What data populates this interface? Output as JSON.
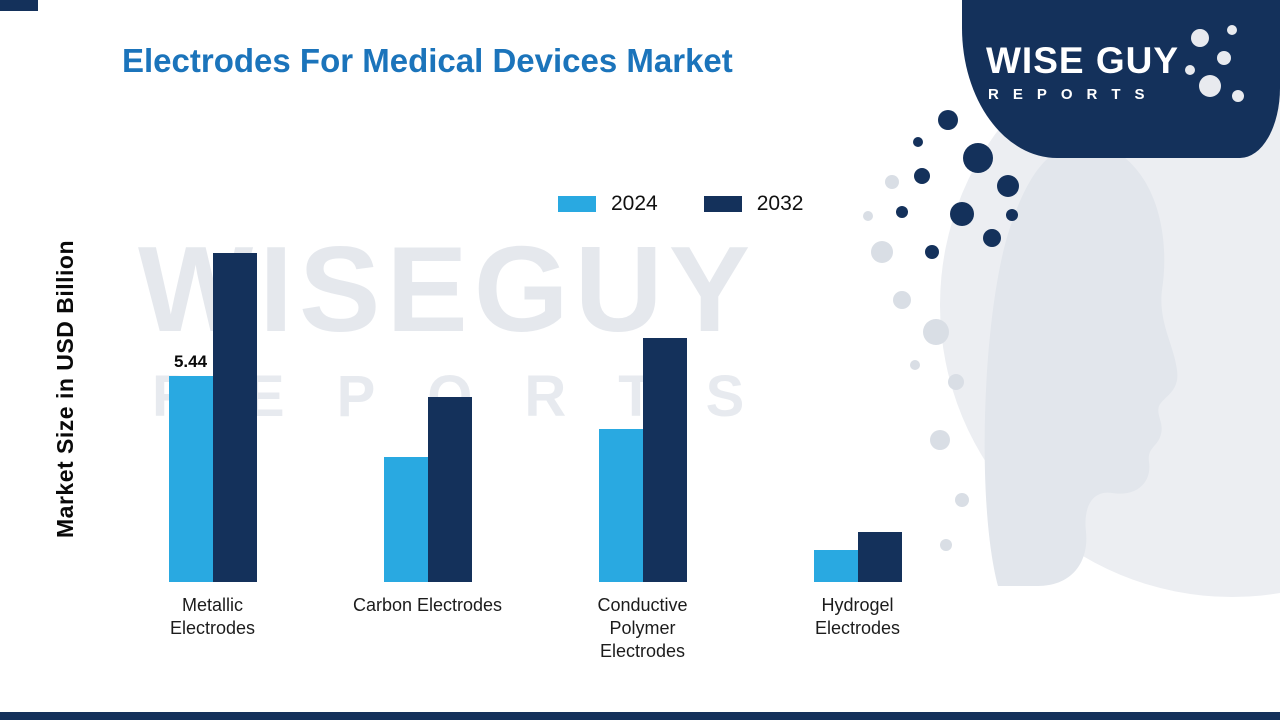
{
  "header": {
    "title": "Electrodes For Medical Devices Market"
  },
  "brand": {
    "name": "WISE GUY",
    "subtitle": "REPORTS"
  },
  "watermark": {
    "line1": "WISEGUY",
    "line2": "REPORTS"
  },
  "colors": {
    "series_2024": "#29A9E1",
    "series_2032": "#14315B",
    "title_blue": "#1B74BB",
    "accent_navy": "#14315B",
    "watermark_gray": "#D5DAE2"
  },
  "chart_data": {
    "type": "bar",
    "title": "Electrodes For Medical Devices Market",
    "ylabel": "Market Size in USD Billion",
    "xlabel": "",
    "ylim": [
      0,
      9
    ],
    "grid": false,
    "legend_position": "top",
    "categories": [
      "Metallic Electrodes",
      "Carbon Electrodes",
      "Conductive Polymer Electrodes",
      "Hydrogel Electrodes"
    ],
    "series": [
      {
        "name": "2024",
        "color": "#29A9E1",
        "values": [
          5.44,
          3.3,
          4.05,
          0.85
        ]
      },
      {
        "name": "2032",
        "color": "#14315B",
        "values": [
          8.7,
          4.9,
          6.45,
          1.33
        ]
      }
    ],
    "annotations": [
      {
        "series": "2024",
        "category": "Metallic Electrodes",
        "text": "5.44"
      }
    ]
  }
}
